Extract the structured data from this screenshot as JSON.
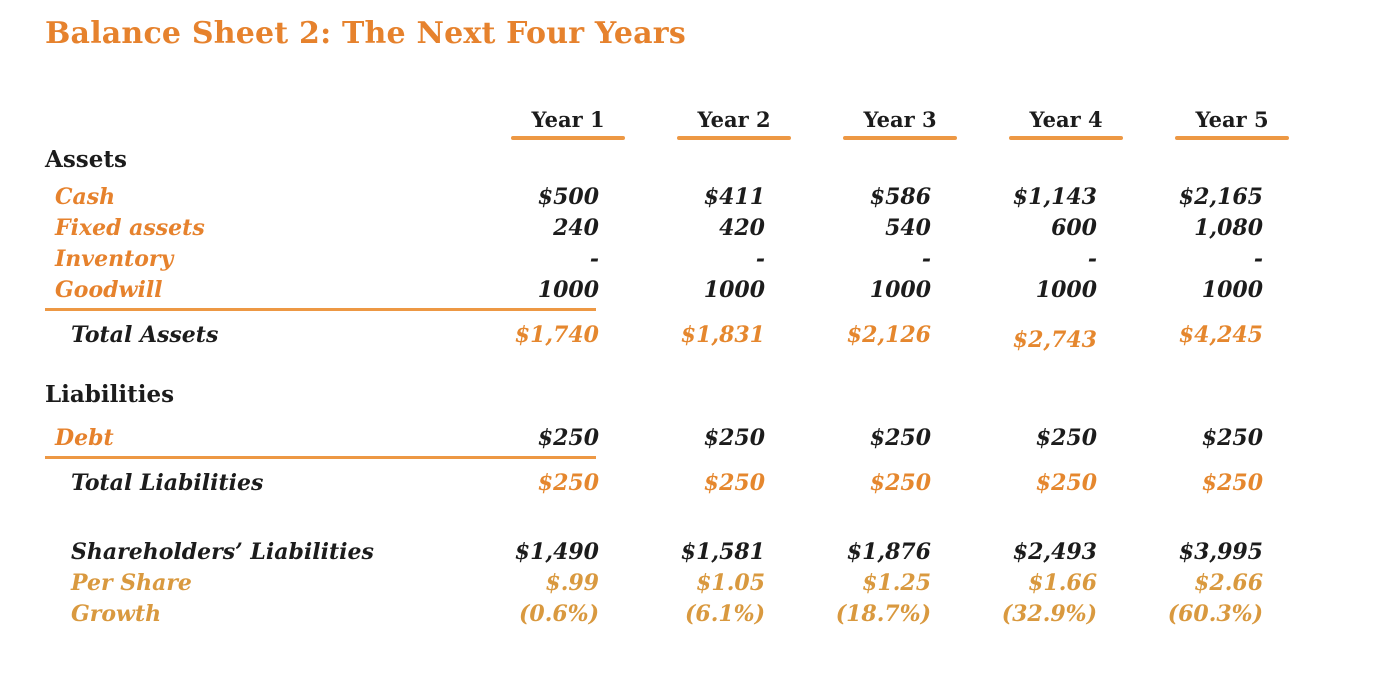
{
  "title": "Balance Sheet 2: The Next Four Years",
  "colors": {
    "accent_orange": "#E6822D",
    "totals_orange": "#E5872E",
    "light_orange": "#D9993F",
    "rule_orange": "#ED9844",
    "text_black": "#1C1C1C",
    "background": "#FFFFFF"
  },
  "columns": [
    "Year 1",
    "Year 2",
    "Year 3",
    "Year 4",
    "Year 5"
  ],
  "assets": {
    "header": "Assets",
    "rows": [
      {
        "label": "Cash",
        "values": [
          "$500",
          "$411",
          "$586",
          "$1,143",
          "$2,165"
        ]
      },
      {
        "label": "Fixed assets",
        "values": [
          "240",
          "420",
          "540",
          "600",
          "1,080"
        ]
      },
      {
        "label": "Inventory",
        "values": [
          "-",
          "-",
          "-",
          "-",
          "-"
        ]
      },
      {
        "label": "Goodwill",
        "values": [
          "1000",
          "1000",
          "1000",
          "1000",
          "1000"
        ]
      }
    ],
    "total": {
      "label": "Total Assets",
      "values": [
        "$1,740",
        "$1,831",
        "$2,126",
        "$2,743",
        "$4,245"
      ]
    }
  },
  "liabilities": {
    "header": "Liabilities",
    "rows": [
      {
        "label": "Debt",
        "values": [
          "$250",
          "$250",
          "$250",
          "$250",
          "$250"
        ]
      }
    ],
    "total": {
      "label": "Total Liabilities",
      "values": [
        "$250",
        "$250",
        "$250",
        "$250",
        "$250"
      ]
    }
  },
  "equity": {
    "shareholders": {
      "label": "Shareholders’ Liabilities",
      "values": [
        "$1,490",
        "$1,581",
        "$1,876",
        "$2,493",
        "$3,995"
      ]
    },
    "per_share": {
      "label": "Per Share",
      "values": [
        "$.99",
        "$1.05",
        "$1.25",
        "$1.66",
        "$2.66"
      ]
    },
    "growth": {
      "label": "Growth",
      "values": [
        "(0.6%)",
        "(6.1%)",
        "(18.7%)",
        "(32.9%)",
        "(60.3%)"
      ]
    }
  }
}
